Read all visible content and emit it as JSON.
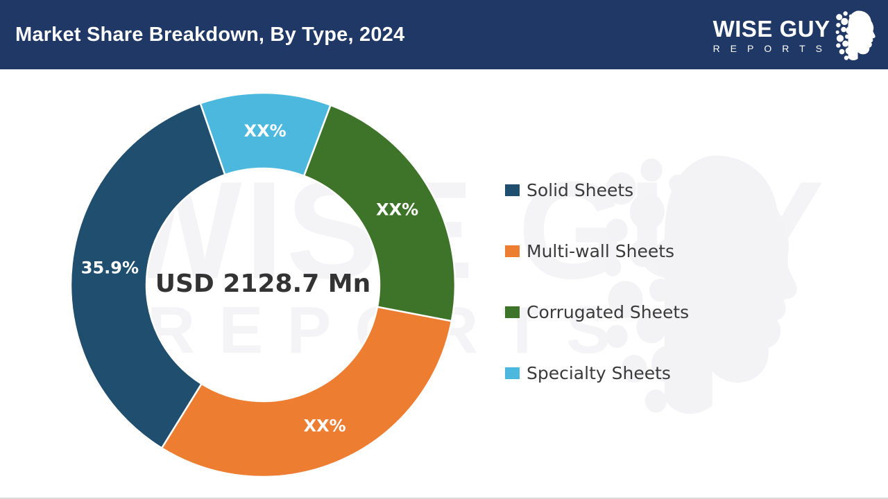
{
  "header": {
    "title": "Market Share Breakdown, By Type, 2024",
    "logo": {
      "line1": "WISE GUY",
      "line2": "REPORTS"
    }
  },
  "watermark": {
    "big_text": "WISE GUY",
    "small_text": "REPORTS"
  },
  "chart_data": {
    "type": "pie",
    "variant": "donut",
    "title": "Market Share Breakdown, By Type, 2024",
    "center_label": "USD 2128.7 Mn",
    "start_angle_deg": 109,
    "direction": "counterclockwise",
    "legend_position": "right",
    "categories": [
      "Solid Sheets",
      "Multi-wall Sheets",
      "Corrugated Sheets",
      "Specialty Sheets"
    ],
    "values": [
      35.9,
      30.8,
      22.3,
      11.0
    ],
    "slice_labels": [
      "35.9%",
      "XX%",
      "XX%",
      "XX%"
    ],
    "colors": [
      "#1f4e6e",
      "#ed7d31",
      "#3e7429",
      "#4cb8de"
    ]
  }
}
